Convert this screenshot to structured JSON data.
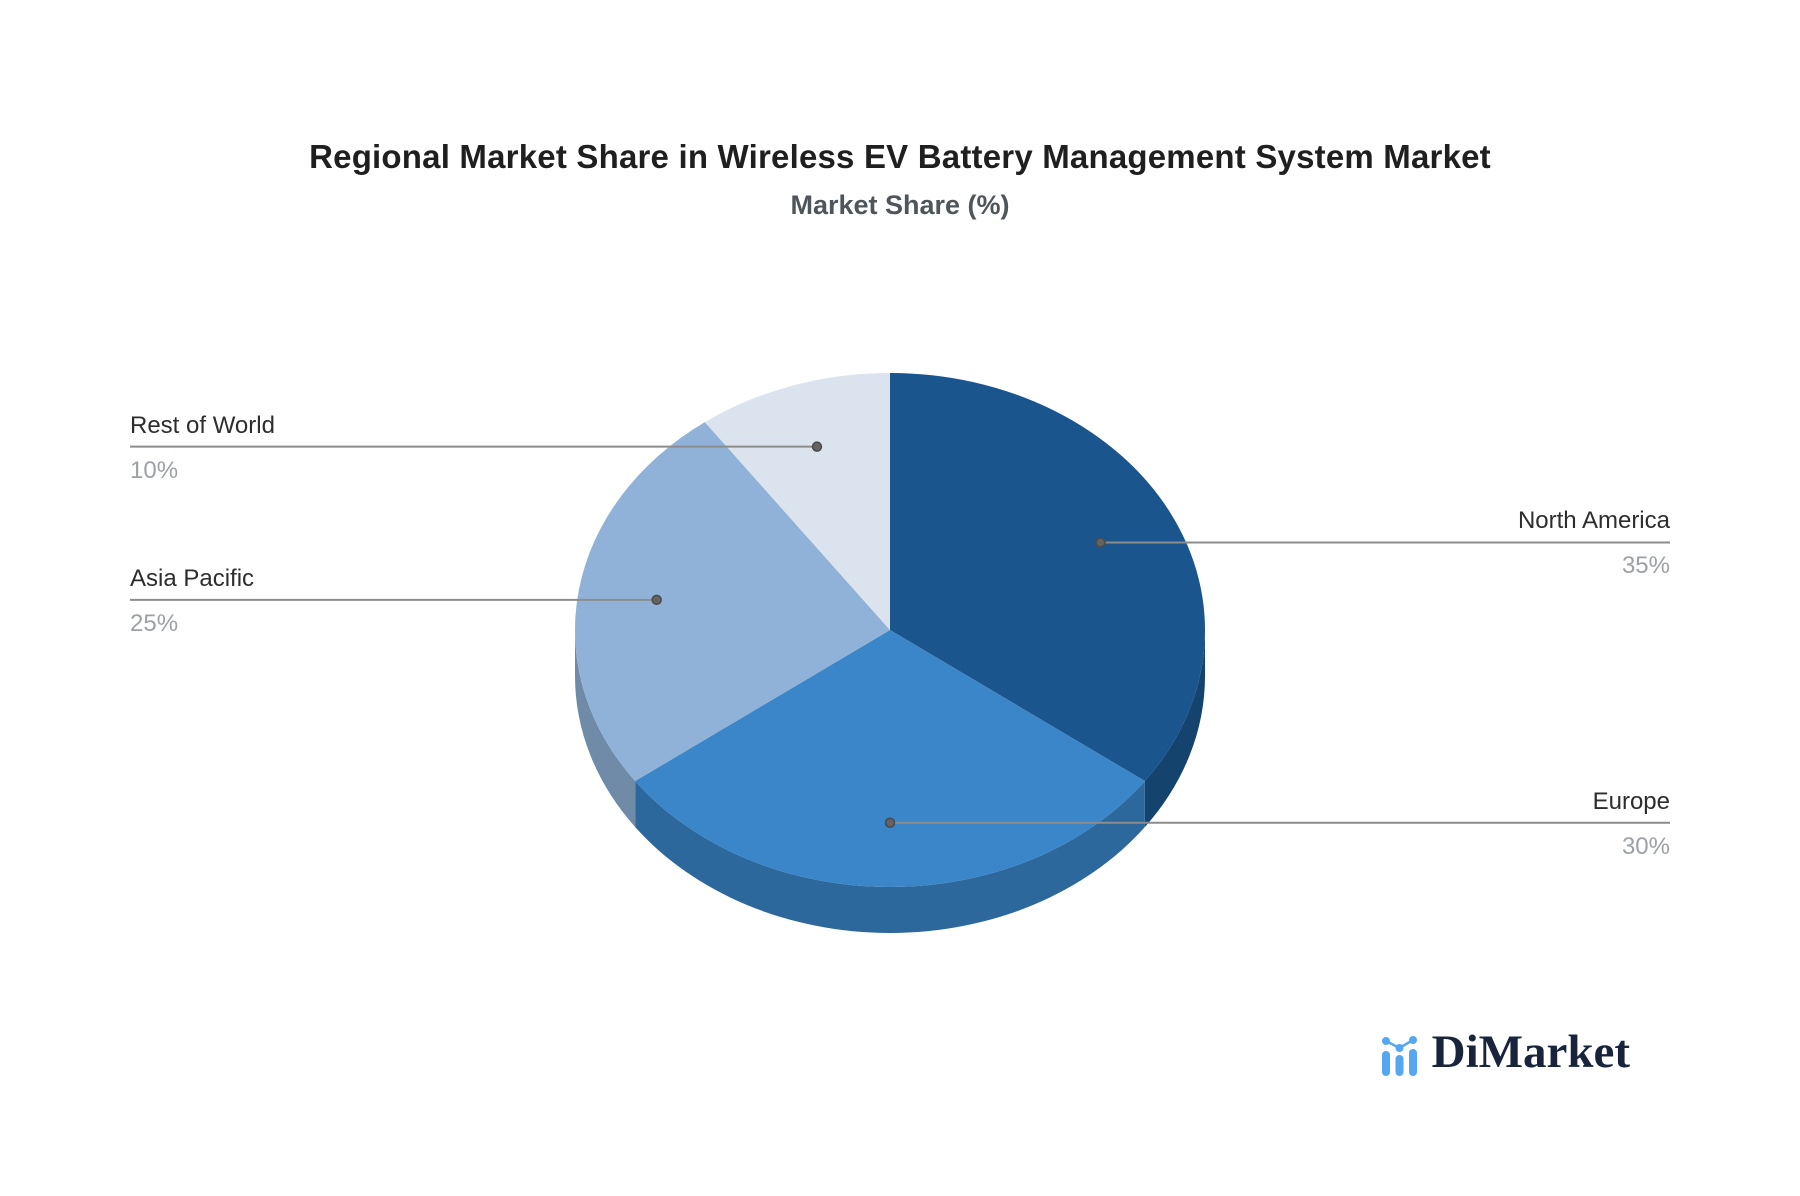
{
  "page": {
    "background": "#ffffff"
  },
  "chart_data": {
    "type": "pie",
    "style": "3d-pie",
    "title": "Regional Market Share in Wireless EV Battery Management System Market",
    "subtitle": "Market Share (%)",
    "unit": "%",
    "direction": "clockwise",
    "start_angle": "12-o-clock",
    "legend": "none; external leader-line labels",
    "slices": [
      {
        "label": "North America",
        "value": 35,
        "pct_label": "35%",
        "color": "#1a568d",
        "side_color": "#14436e",
        "label_side": "right"
      },
      {
        "label": "Europe",
        "value": 30,
        "pct_label": "30%",
        "color": "#3a86c8",
        "side_color": "#2d689c",
        "label_side": "right"
      },
      {
        "label": "Asia Pacific",
        "value": 25,
        "pct_label": "25%",
        "color": "#90b2d8",
        "side_color": "#708ba8",
        "label_side": "left"
      },
      {
        "label": "Rest of World",
        "value": 10,
        "pct_label": "10%",
        "color": "#dbe3ef",
        "side_color": "#aab6c9",
        "label_side": "left"
      }
    ],
    "colors": {
      "leader_line": "#8c8c8c",
      "anchor_dot": "#636363",
      "anchor_dot_ring": "#4a4a4a",
      "label_text": "#2d2d2d",
      "pct_text": "#9ba1a6"
    }
  },
  "logo": {
    "name": "DiMarket",
    "icon": "bar-line-chart-icon",
    "icon_color": "#55a7f3",
    "text_color": "#18243c"
  }
}
